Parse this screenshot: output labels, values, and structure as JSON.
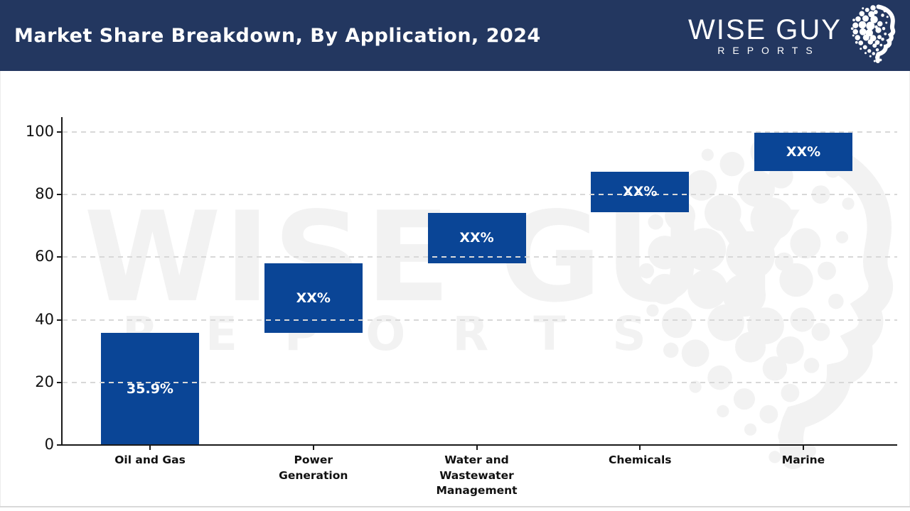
{
  "header": {
    "title": "Market Share Breakdown, By Application, 2024",
    "logo": {
      "brand": "WISE GUY",
      "sub": "REPORTS"
    }
  },
  "watermark": {
    "brand": "WISE GUY",
    "sub": "REPORTS"
  },
  "chart_data": {
    "type": "bar",
    "subtype": "waterfall",
    "title": "Market Share Breakdown, By Application, 2024",
    "categories": [
      "Oil and Gas",
      "Power Generation",
      "Water and Wastewater Management",
      "Chemicals",
      "Marine"
    ],
    "segments": [
      {
        "category": "Oil and Gas",
        "start": 0,
        "end": 35.9,
        "label": "35.9%"
      },
      {
        "category": "Power Generation",
        "start": 35.9,
        "end": 58.0,
        "label": "XX%"
      },
      {
        "category": "Water and Wastewater Management",
        "start": 58.0,
        "end": 74.2,
        "label": "XX%"
      },
      {
        "category": "Chemicals",
        "start": 74.4,
        "end": 87.3,
        "label": "XX%"
      },
      {
        "category": "Marine",
        "start": 87.6,
        "end": 99.8,
        "label": "XX%"
      }
    ],
    "xlabel": "",
    "ylabel": "",
    "yticks": [
      0,
      20,
      40,
      60,
      80,
      100
    ],
    "ylim": [
      0,
      104
    ],
    "grid": "dashed-horizontal",
    "legend": "none",
    "colors": {
      "bar": "#0a4596",
      "header": "#233760",
      "grid": "#d8d8d8",
      "axis": "#1a1a1a",
      "bar_label": "#ffffff",
      "watermark": "#f2f2f2"
    }
  }
}
